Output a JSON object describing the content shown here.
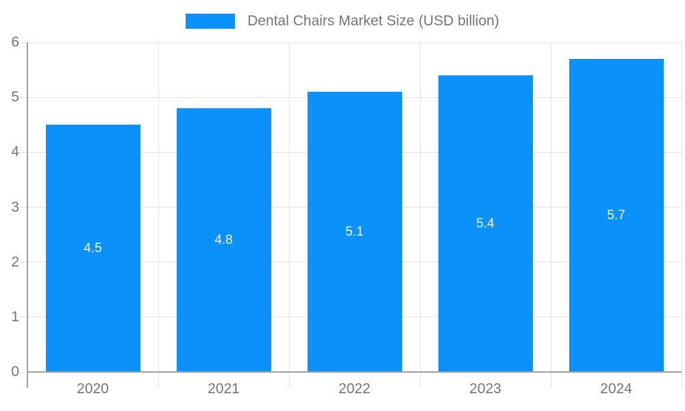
{
  "chart_data": {
    "type": "bar",
    "title": "Dental Chairs Market Size (USD billion)",
    "categories": [
      "2020",
      "2021",
      "2022",
      "2023",
      "2024"
    ],
    "values": [
      4.5,
      4.8,
      5.1,
      5.4,
      5.7
    ],
    "value_labels": [
      "4.5",
      "4.8",
      "5.1",
      "5.4",
      "5.7"
    ],
    "xlabel": "",
    "ylabel": "",
    "ylim": [
      0,
      6
    ],
    "yticks": [
      0,
      1,
      2,
      3,
      4,
      5,
      6
    ],
    "ytick_labels": [
      "0",
      "1",
      "2",
      "3",
      "4",
      "5",
      "6"
    ],
    "grid": true,
    "legend_position": "top",
    "colors": {
      "bar": "#0a91fa",
      "grid": "#e3e3e3",
      "axis": "#9e9e9e",
      "tick_label": "#757575",
      "legend_label": "#757575",
      "value_label": "#ffffff",
      "background": "#ffffff"
    }
  }
}
